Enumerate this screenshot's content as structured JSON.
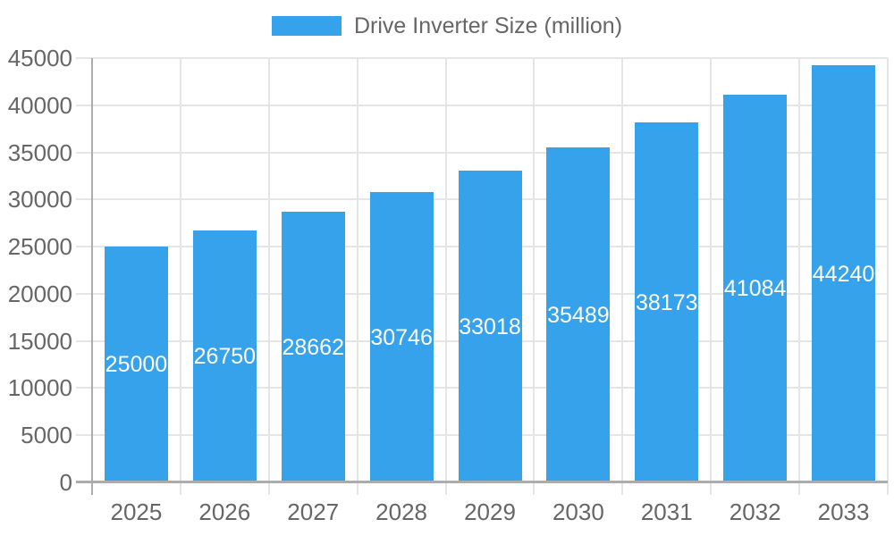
{
  "legend": {
    "label": "Drive Inverter Size (million)"
  },
  "chart_data": {
    "type": "bar",
    "title": "Drive Inverter Size (million)",
    "categories": [
      "2025",
      "2026",
      "2027",
      "2028",
      "2029",
      "2030",
      "2031",
      "2032",
      "2033"
    ],
    "series": [
      {
        "name": "Drive Inverter Size (million)",
        "values": [
          25000,
          26750,
          28662,
          30746,
          33018,
          35489,
          38173,
          41084,
          44240
        ]
      }
    ],
    "value_labels": [
      25000,
      26750,
      28662,
      30746,
      33018,
      35489,
      38173,
      41084,
      44240
    ],
    "xlabel": "",
    "ylabel": "",
    "ylim": [
      0,
      45000
    ],
    "ytick_step": 5000,
    "ytick_labels": [
      "0",
      "5000",
      "10000",
      "15000",
      "20000",
      "25000",
      "30000",
      "35000",
      "40000",
      "45000"
    ],
    "grid": true,
    "legend_position": "top",
    "colors": {
      "bar": "#36A2EB",
      "value_label": "#FFFFFF",
      "tick_text": "#666666",
      "legend_text": "#666666",
      "grid": "#E5E5E5",
      "axis": "#ACACAC",
      "background": "#FFFFFF"
    }
  }
}
